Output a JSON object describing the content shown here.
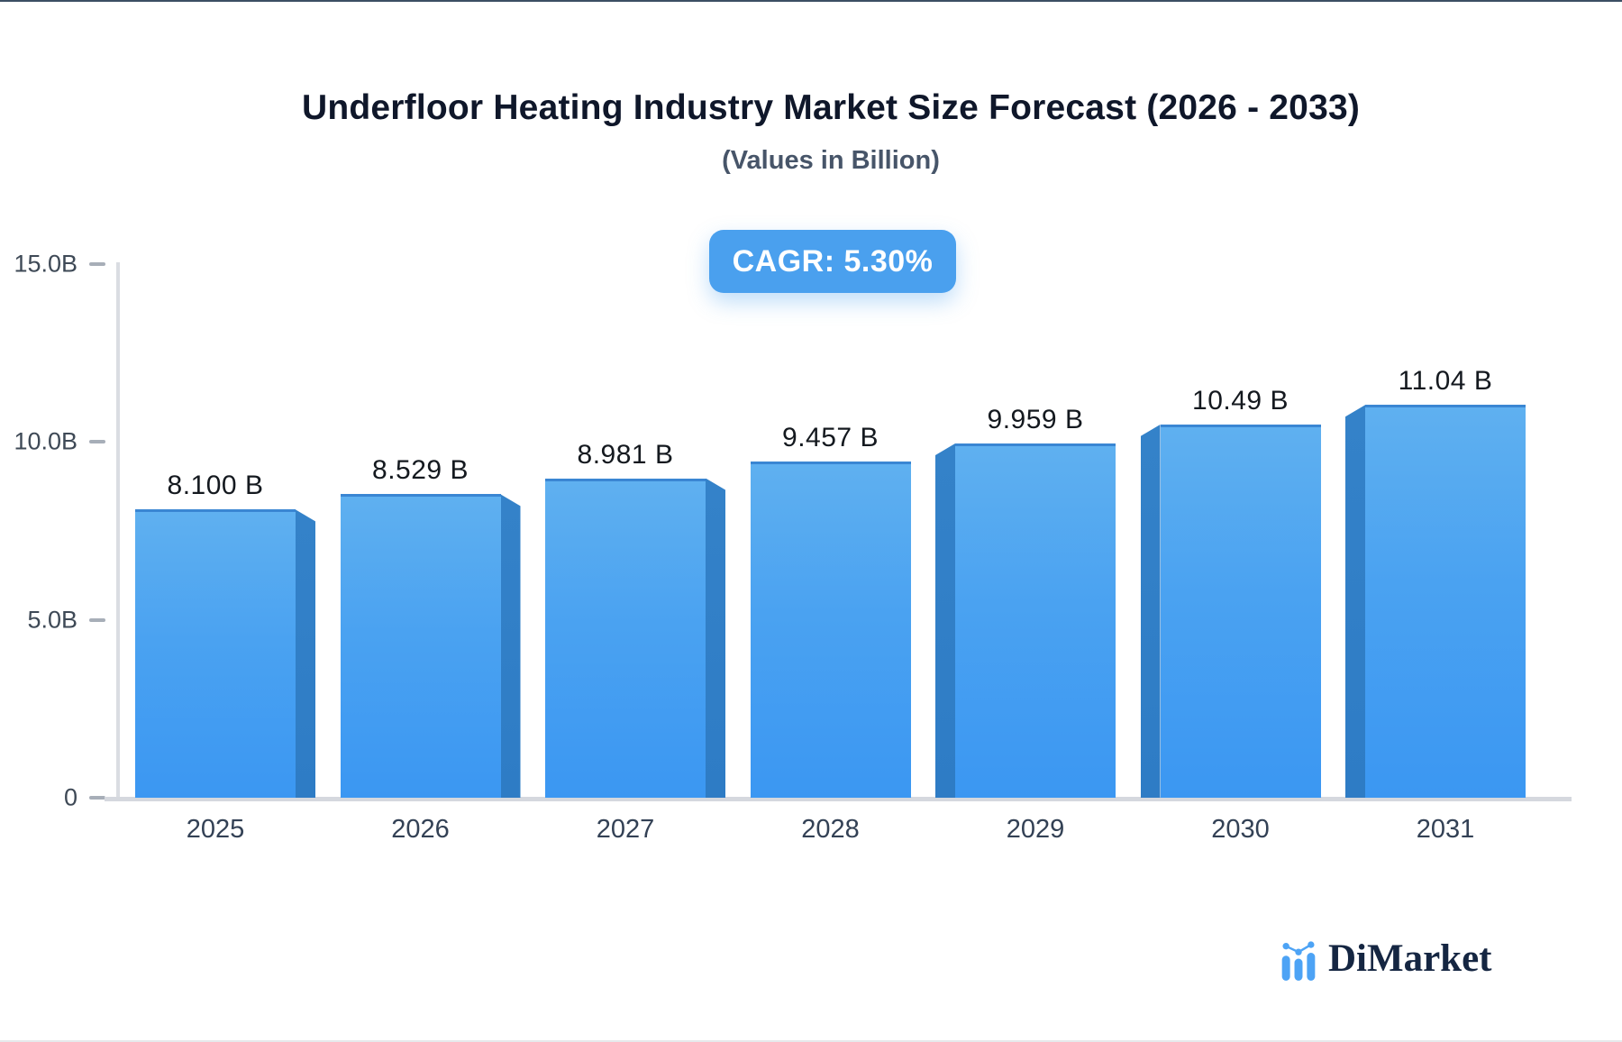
{
  "page": {
    "title": "Underfloor Heating Industry Market Size Forecast (2026 - 2033)",
    "subtitle": "(Values in Billion)",
    "cagr_badge": "CAGR: 5.30%",
    "brand": "DiMarket"
  },
  "chart_data": {
    "type": "bar",
    "title": "Underfloor Heating Industry Market Size Forecast (2026 - 2033)",
    "subtitle": "(Values in Billion)",
    "cagr_label": "CAGR: 5.30%",
    "cagr_percent": 5.3,
    "categories": [
      "2025",
      "2026",
      "2027",
      "2028",
      "2029",
      "2030",
      "2031"
    ],
    "values": [
      8.1,
      8.529,
      8.981,
      9.457,
      9.959,
      10.49,
      11.04
    ],
    "value_labels": [
      "8.100 B",
      "8.529 B",
      "8.981 B",
      "9.457 B",
      "9.959 B",
      "10.49 B",
      "11.04 B"
    ],
    "xlabel": "",
    "ylabel": "",
    "ytick_labels": [
      "15.0B",
      "10.0B",
      "5.0B",
      "0"
    ],
    "ytick_values": [
      15,
      10,
      5,
      0
    ],
    "ylim": [
      0,
      15
    ],
    "grid": false,
    "legend": false,
    "bar_style": "3d-perspective",
    "colors": {
      "bar_face_top": "#5fb0f0",
      "bar_face_bottom": "#3b97f2",
      "bar_side": "#2e7cc5",
      "bar_top_edge": "#3a86d3",
      "badge_bg": "#4aa0ee",
      "axis_line": "#dadde2",
      "tick": "#a7aeb8",
      "title_text": "#0f172a",
      "brand_blue": "#4da3f5",
      "brand_navy": "#152642"
    }
  }
}
